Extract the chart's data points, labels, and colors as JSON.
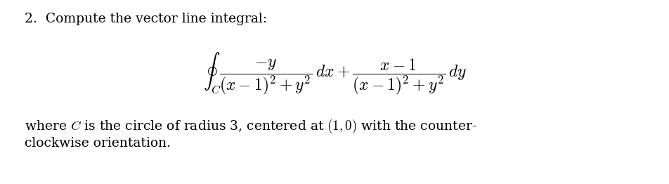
{
  "title_line": "2.  Compute the vector line integral:",
  "integral_latex": "$\\oint_{C} \\dfrac{-y}{(x-1)^2 + y^2}\\, dx + \\dfrac{x-1}{(x-1)^2 + y^2}\\, dy$",
  "body_text_part1": "where $C$ is the circle of radius 3, centered at $(1, 0)$ with the counter-",
  "body_text_part2": "clockwise orientation.",
  "bg_color": "#ffffff",
  "text_color": "#000000",
  "title_fontsize": 13.5,
  "integral_fontsize": 17,
  "body_fontsize": 13.5,
  "fig_width": 9.53,
  "fig_height": 2.62
}
